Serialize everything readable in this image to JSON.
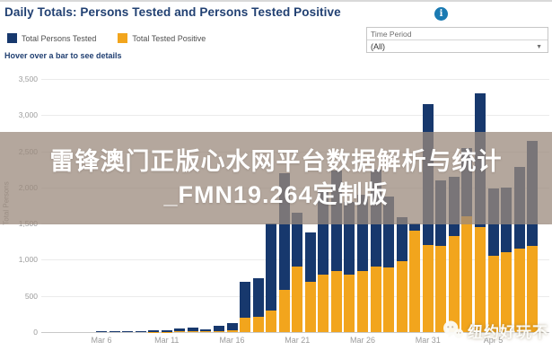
{
  "header": {
    "title": "Daily Totals: Persons Tested and Persons Tested Positive",
    "info_icon": "i"
  },
  "subtitle": "Hover over a bar to see details",
  "legend": [
    {
      "label": "Total Persons Tested",
      "color": "#17386d"
    },
    {
      "label": "Total Tested Positive",
      "color": "#f2a51d"
    }
  ],
  "filter": {
    "label": "Time Period",
    "value": "(All)",
    "caret": "▼"
  },
  "overlay": {
    "text": "雷锋澳门正版心水网平台数据解析与统计_FMN19.264定制版"
  },
  "watermark": {
    "text": "纽约好玩不"
  },
  "chart_data": {
    "type": "bar",
    "stacked": true,
    "title": "Daily Totals: Persons Tested and Persons Tested Positive",
    "xlabel": "",
    "ylabel": "Total Persons",
    "ylim": [
      0,
      3500
    ],
    "grid": true,
    "legend_position": "top-left",
    "y_ticks": [
      "0",
      "500",
      "1,000",
      "1,500",
      "2,000",
      "2,500",
      "3,000",
      "3,500"
    ],
    "categories": [
      "Mar 6",
      "Mar 7",
      "Mar 8",
      "Mar 9",
      "Mar 10",
      "Mar 11",
      "Mar 12",
      "Mar 13",
      "Mar 14",
      "Mar 15",
      "Mar 16",
      "Mar 17",
      "Mar 18",
      "Mar 19",
      "Mar 20",
      "Mar 21",
      "Mar 22",
      "Mar 23",
      "Mar 24",
      "Mar 25",
      "Mar 26",
      "Mar 27",
      "Mar 28",
      "Mar 29",
      "Mar 30",
      "Mar 31",
      "Apr 1",
      "Apr 2",
      "Apr 3",
      "Apr 4",
      "Apr 5",
      "Apr 6",
      "Apr 7",
      "Apr 8"
    ],
    "x_axis_ticks": [
      {
        "label": "Mar 6",
        "day": 0
      },
      {
        "label": "Mar 11",
        "day": 5
      },
      {
        "label": "Mar 16",
        "day": 10
      },
      {
        "label": "Mar 21",
        "day": 15
      },
      {
        "label": "Mar 26",
        "day": 20
      },
      {
        "label": "Mar 31",
        "day": 25
      },
      {
        "label": "Apr 5",
        "day": 30
      }
    ],
    "series": [
      {
        "name": "Total Persons Tested",
        "color": "#17386d",
        "values": [
          8,
          10,
          12,
          15,
          20,
          30,
          45,
          66,
          40,
          88,
          120,
          700,
          750,
          1500,
          2200,
          1650,
          1380,
          1950,
          2230,
          1800,
          1900,
          2250,
          1870,
          1590,
          1500,
          3150,
          2100,
          2150,
          2550,
          3300,
          1980,
          2000,
          2280,
          2640
        ]
      },
      {
        "name": "Total Tested Positive",
        "color": "#f2a51d",
        "values": [
          0,
          0,
          0,
          0,
          3,
          5,
          8,
          12,
          8,
          18,
          25,
          200,
          205,
          300,
          580,
          900,
          700,
          800,
          850,
          800,
          850,
          900,
          890,
          975,
          1400,
          1200,
          1190,
          1330,
          1600,
          1450,
          1060,
          1100,
          1160,
          1190
        ]
      }
    ]
  }
}
